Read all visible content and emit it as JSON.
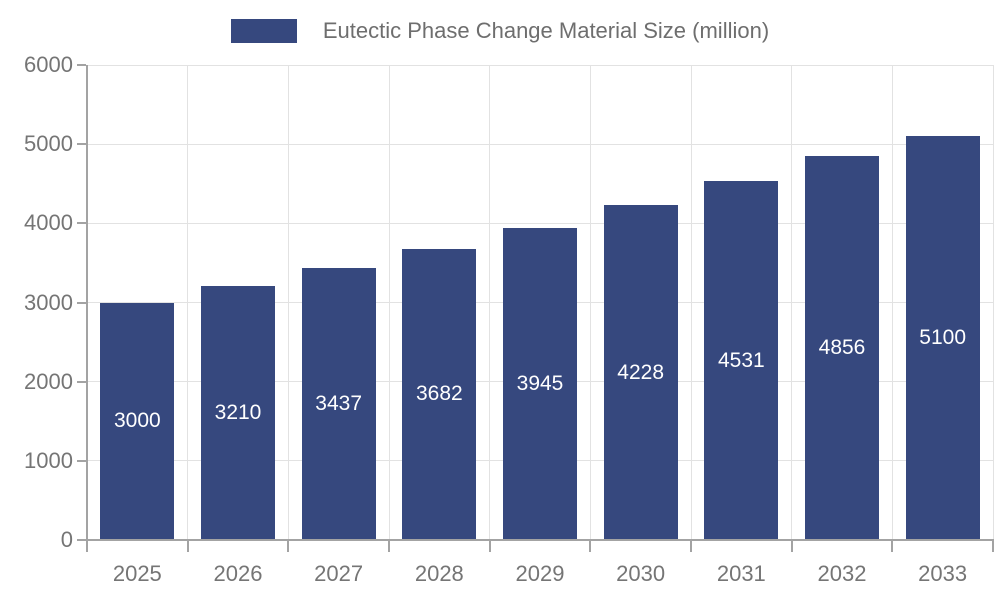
{
  "chart_data": {
    "type": "bar",
    "title": "Eutectic Phase Change Material Size (million)",
    "legend": {
      "label": "Eutectic Phase Change Material Size (million)",
      "position": "top-center"
    },
    "categories": [
      "2025",
      "2026",
      "2027",
      "2028",
      "2029",
      "2030",
      "2031",
      "2032",
      "2033"
    ],
    "series": [
      {
        "name": "Eutectic Phase Change Material Size (million)",
        "values": [
          3000,
          3210,
          3437,
          3682,
          3945,
          4228,
          4531,
          4856,
          5100
        ]
      }
    ],
    "value_labels_shown": true,
    "value_label_position": "inside-center",
    "xlabel": "",
    "ylabel": "",
    "ylim": [
      0,
      6000
    ],
    "yticks": [
      0,
      1000,
      2000,
      3000,
      4000,
      5000,
      6000
    ],
    "grid": true,
    "colors": {
      "bar_fill": "#36487e",
      "value_label": "#ffffff",
      "axis_line": "#a3a3a3",
      "gridline": "#e2e2e2",
      "tick_label": "#757575",
      "legend_text": "#6e6e6e",
      "background": "#ffffff"
    }
  }
}
